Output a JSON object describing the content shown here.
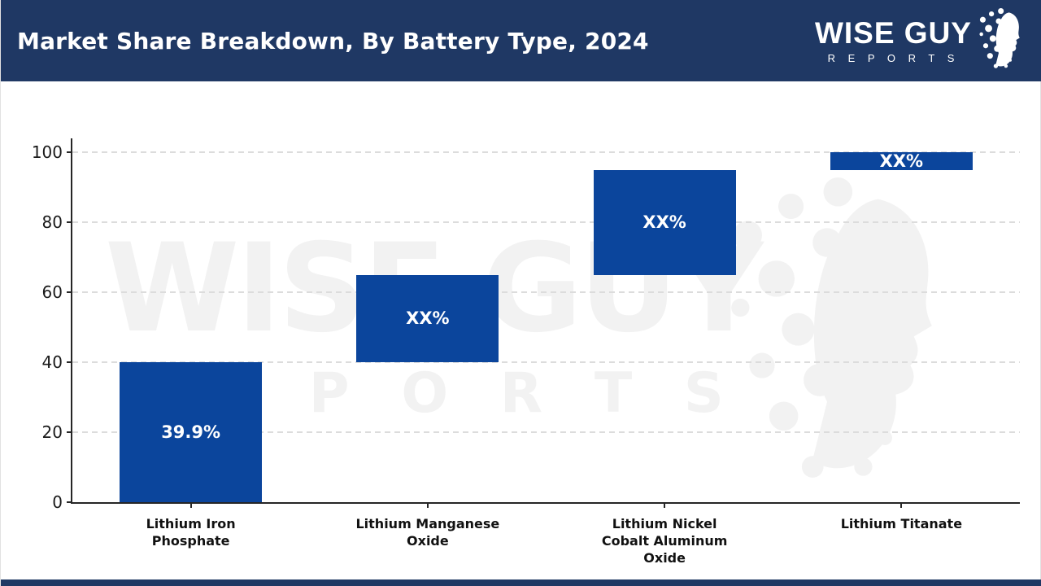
{
  "header": {
    "title": "Market Share Breakdown, By Battery Type, 2024",
    "logo": {
      "wordmark": "WISE GUY",
      "subtext": "R E P O R T S"
    }
  },
  "watermark": {
    "line1": "WISE GUY",
    "line2": "R E P O R T S"
  },
  "colors": {
    "header_bg": "#1f3864",
    "footer_bg": "#1f3864",
    "bar": "#0b459c",
    "bar_label_text": "#ffffff",
    "grid": "#dcdcdc",
    "axis": "#262626",
    "tick_text": "#1a1a1a",
    "watermark": "#f2f2f2"
  },
  "chart_data": {
    "type": "bar",
    "subtype": "waterfall",
    "title": "Market Share Breakdown, By Battery Type, 2024",
    "categories": [
      "Lithium Iron\nPhosphate",
      "Lithium Manganese\nOxide",
      "Lithium Nickel\nCobalt Aluminum\nOxide",
      "Lithium Titanate"
    ],
    "bars": [
      {
        "start": 0,
        "end": 40,
        "label": "39.9%"
      },
      {
        "start": 40,
        "end": 65,
        "label": "XX%"
      },
      {
        "start": 65,
        "end": 95,
        "label": "XX%"
      },
      {
        "start": 95,
        "end": 100,
        "label": "XX%"
      }
    ],
    "yticks": [
      0,
      20,
      40,
      60,
      80,
      100
    ],
    "ylim": [
      0,
      104
    ],
    "xlabel": "",
    "ylabel": "",
    "grid": "horizontal-dashed",
    "legend": "none"
  }
}
